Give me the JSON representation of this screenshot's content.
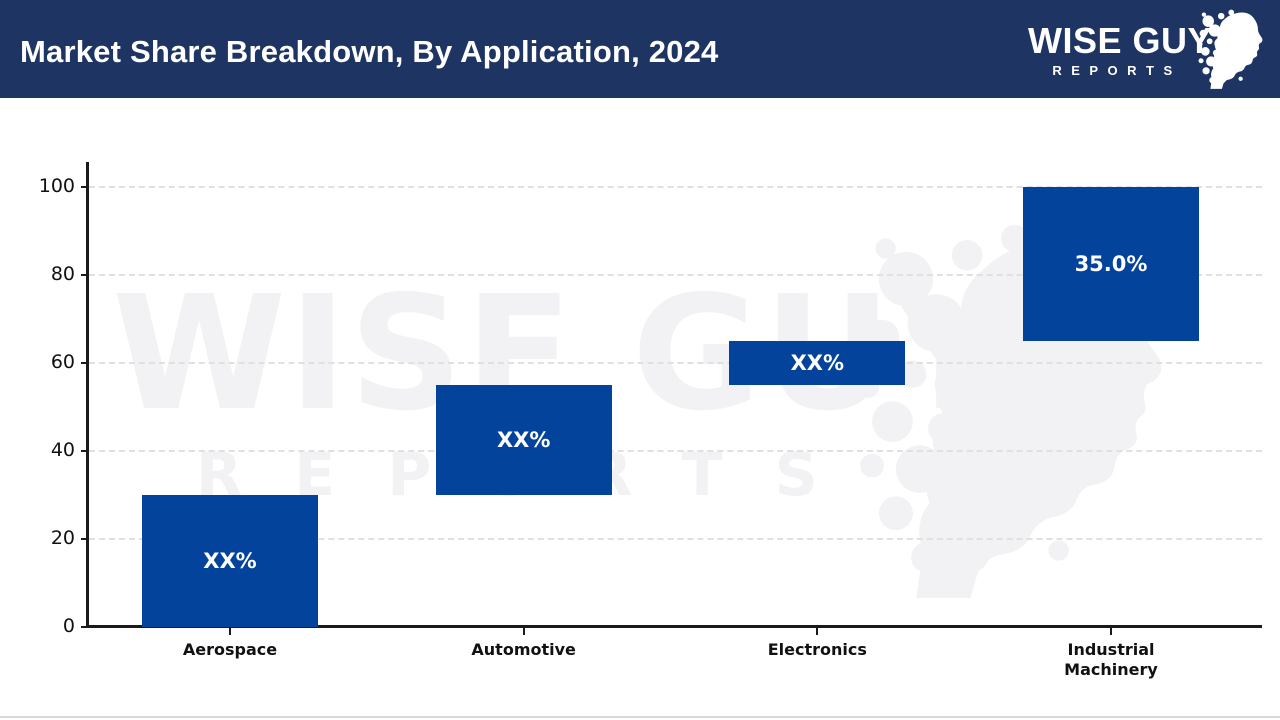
{
  "header": {
    "title": "Market Share Breakdown, By Application, 2024",
    "logo": {
      "line1": "WISE GUY",
      "line2": "REPORTS"
    }
  },
  "watermark": {
    "line1": "WISE GUY",
    "line2": "REPORTS"
  },
  "chart_data": {
    "type": "bar",
    "subtype": "waterfall",
    "title": "Market Share Breakdown, By Application, 2024",
    "categories": [
      "Aerospace",
      "Automotive",
      "Electronics",
      "Industrial Machinery"
    ],
    "bars": [
      {
        "category": "Aerospace",
        "start": 0,
        "end": 30,
        "value_label": "XX%"
      },
      {
        "category": "Automotive",
        "start": 30,
        "end": 55,
        "value_label": "XX%"
      },
      {
        "category": "Electronics",
        "start": 55,
        "end": 65,
        "value_label": "XX%"
      },
      {
        "category": "Industrial Machinery",
        "start": 65,
        "end": 100,
        "value_label": "35.0%"
      }
    ],
    "xlabel": "",
    "ylabel": "",
    "yticks": [
      0,
      20,
      40,
      60,
      80,
      100
    ],
    "ylim": [
      0,
      105
    ],
    "grid": "horizontal-dashed",
    "legend": "none",
    "bar_color": "#04439B",
    "bar_label_color": "#FFFFFF"
  },
  "colors": {
    "header_bg": "#1E3563",
    "bar": "#04439B",
    "grid": "#E0E0E0",
    "axis": "#1A1A1A",
    "tick_text": "#111111",
    "watermark": "#F2F2F5",
    "footer_line": "#D9D9D9"
  }
}
